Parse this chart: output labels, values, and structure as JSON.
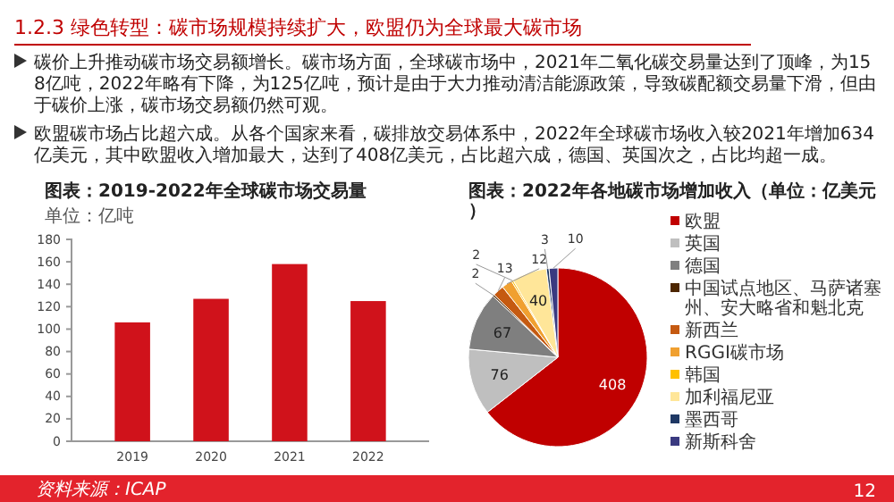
{
  "chart_data": [
    {
      "type": "other",
      "title": "1.2.3 绿色转型：碳市场规模持续扩大，欧盟仍为全球最大碳市场",
      "annotations": [
        "碳价上升推动碳市场交易额增长。碳市场方面，全球碳市场中，2021年二氧化碳交易量达到了顶峰，为158亿吨，2022年略有下降，为125亿吨，预计是由于大力推动清洁能源政策，导致碳配额交易量下滑，但由于碳价上涨，碳市场交易额仍然可观。",
        "欧盟碳市场占比超六成。从各个国家来看，碳排放交易体系中，2022年全球碳市场收入较2021年增加634亿美元，其中欧盟收入增加最大，达到了408亿美元，占比超六成，德国、英国次之，占比均超一成。",
        "资料来源：ICAP",
        "12"
      ]
    },
    {
      "type": "bar",
      "title": "图表：2019-2022年全球碳市场交易量",
      "ylabel": "单位：亿吨",
      "categories": [
        "2019",
        "2020",
        "2021",
        "2022"
      ],
      "values": [
        106,
        127,
        158,
        125
      ],
      "color": "#d0121b",
      "ylim": [
        0,
        180
      ],
      "yticks": [
        0,
        20,
        40,
        60,
        80,
        100,
        120,
        140,
        160,
        180
      ],
      "grid": false
    },
    {
      "type": "pie",
      "title": "图表：2022年各地碳市场增加收入（单位：亿美元）",
      "categories": [
        "欧盟",
        "英国",
        "德国",
        "中国试点地区、马萨诸塞州、安大略省和魁北克",
        "新西兰",
        "RGGI碳市场",
        "韩国",
        "加利福尼亚",
        "墨西哥",
        "新斯科舍"
      ],
      "values": [
        408,
        76,
        67,
        2,
        13,
        12,
        2,
        40,
        3,
        10
      ],
      "colors": [
        "#c00000",
        "#bfbfbf",
        "#7f7f7f",
        "#4d2600",
        "#c55a11",
        "#f0a030",
        "#ffc000",
        "#ffe699",
        "#1f3864",
        "#3a3a80"
      ],
      "data_labels": true,
      "legend": "right"
    }
  ]
}
